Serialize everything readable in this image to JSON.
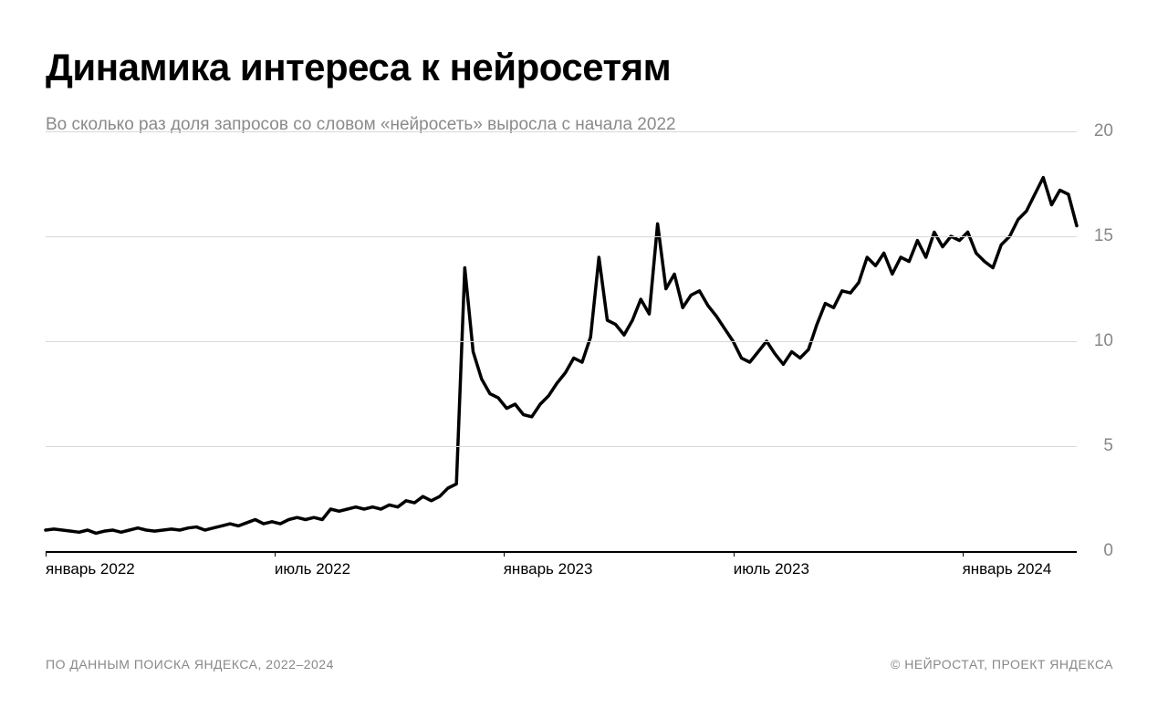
{
  "title": "Динамика интереса к нейросетям",
  "subtitle": "Во сколько раз доля запросов со словом «нейросеть» выросла с начала 2022",
  "footer_left": "ПО ДАННЫМ ПОИСКА ЯНДЕКСА, 2022–2024",
  "footer_right": "© НЕЙРОСТАТ, ПРОЕКТ ЯНДЕКСА",
  "chart": {
    "type": "line",
    "ylim": [
      0,
      20
    ],
    "yticks": [
      0,
      5,
      10,
      15,
      20
    ],
    "xticks": [
      {
        "label": "январь 2022",
        "pos": 0.0
      },
      {
        "label": "июль 2022",
        "pos": 0.222
      },
      {
        "label": "январь 2023",
        "pos": 0.444
      },
      {
        "label": "июль 2023",
        "pos": 0.667
      },
      {
        "label": "январь 2024",
        "pos": 0.889
      }
    ],
    "line_color": "#000000",
    "line_width": 3.5,
    "grid_color": "#d8d8d8",
    "baseline_color": "#000000",
    "background_color": "#ffffff",
    "y_label_color": "#888888",
    "x_label_color": "#000000",
    "title_fontsize": 42,
    "subtitle_fontsize": 19,
    "axis_fontsize": 19,
    "data": [
      1.0,
      1.05,
      1.0,
      0.95,
      0.9,
      1.0,
      0.85,
      0.95,
      1.0,
      0.9,
      1.0,
      1.1,
      1.0,
      0.95,
      1.0,
      1.05,
      1.0,
      1.1,
      1.15,
      1.0,
      1.1,
      1.2,
      1.3,
      1.2,
      1.35,
      1.5,
      1.3,
      1.4,
      1.3,
      1.5,
      1.6,
      1.5,
      1.6,
      1.5,
      2.0,
      1.9,
      2.0,
      2.1,
      2.0,
      2.1,
      2.0,
      2.2,
      2.1,
      2.4,
      2.3,
      2.6,
      2.4,
      2.6,
      3.0,
      3.2,
      13.5,
      9.5,
      8.2,
      7.5,
      7.3,
      6.8,
      7.0,
      6.5,
      6.4,
      7.0,
      7.4,
      8.0,
      8.5,
      9.2,
      9.0,
      10.2,
      14.0,
      11.0,
      10.8,
      10.3,
      11.0,
      12.0,
      11.3,
      15.6,
      12.5,
      13.2,
      11.6,
      12.2,
      12.4,
      11.7,
      11.2,
      10.6,
      10.0,
      9.2,
      9.0,
      9.5,
      10.0,
      9.4,
      8.9,
      9.5,
      9.2,
      9.6,
      10.8,
      11.8,
      11.6,
      12.4,
      12.3,
      12.8,
      14.0,
      13.6,
      14.2,
      13.2,
      14.0,
      13.8,
      14.8,
      14.0,
      15.2,
      14.5,
      15.0,
      14.8,
      15.2,
      14.2,
      13.8,
      13.5,
      14.6,
      15.0,
      15.8,
      16.2,
      17.0,
      17.8,
      16.5,
      17.2,
      17.0,
      15.5
    ]
  }
}
